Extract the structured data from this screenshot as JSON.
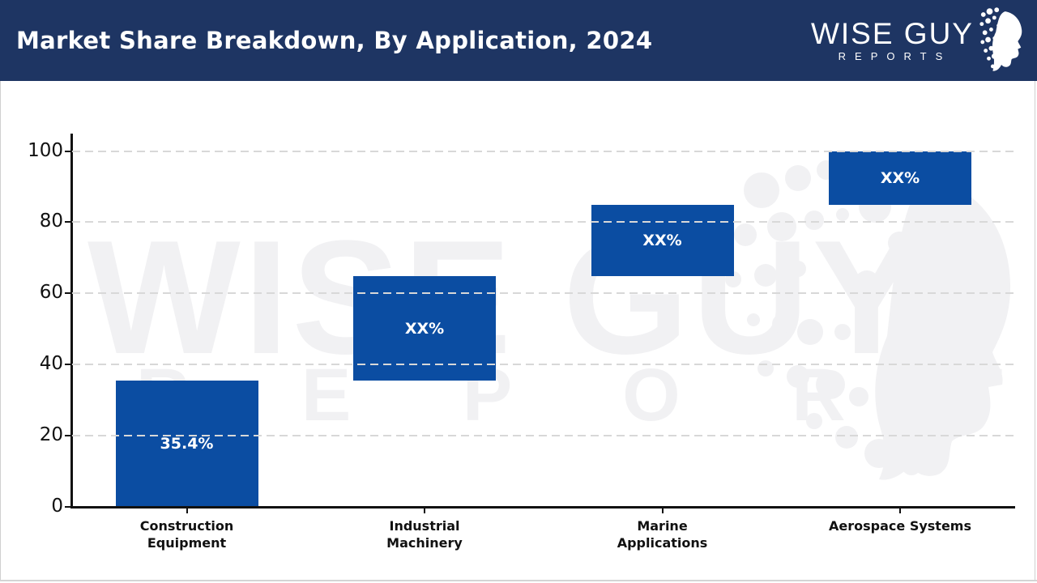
{
  "header": {
    "bg_color": "#1e3563",
    "title": "Market Share Breakdown, By Application, 2024",
    "logo": {
      "line1": "WISE GUY",
      "line2": "REPORTS",
      "head_icon": "head-profile-dots-icon"
    }
  },
  "watermark": {
    "line1": "WISE GUY",
    "line2": "R E P O R T S"
  },
  "chart_data": {
    "type": "bar",
    "subtype": "waterfall",
    "title": "Market Share Breakdown, By Application, 2024",
    "categories": [
      "Construction\nEquipment",
      "Industrial\nMachinery",
      "Marine\nApplications",
      "Aerospace Systems"
    ],
    "bars": [
      {
        "label": "35.4%",
        "start": 0,
        "end": 35.4
      },
      {
        "label": "XX%",
        "start": 35.4,
        "end": 64.9
      },
      {
        "label": "XX%",
        "start": 64.9,
        "end": 84.8
      },
      {
        "label": "XX%",
        "start": 84.8,
        "end": 100
      }
    ],
    "y_ticks": [
      0,
      20,
      40,
      60,
      80,
      100
    ],
    "ylim": [
      0,
      105
    ],
    "xlabel": "",
    "ylabel": "",
    "bar_color": "#0b4da2",
    "grid": "horizontal-dashed",
    "grid_on_top": true,
    "legend": "none"
  }
}
